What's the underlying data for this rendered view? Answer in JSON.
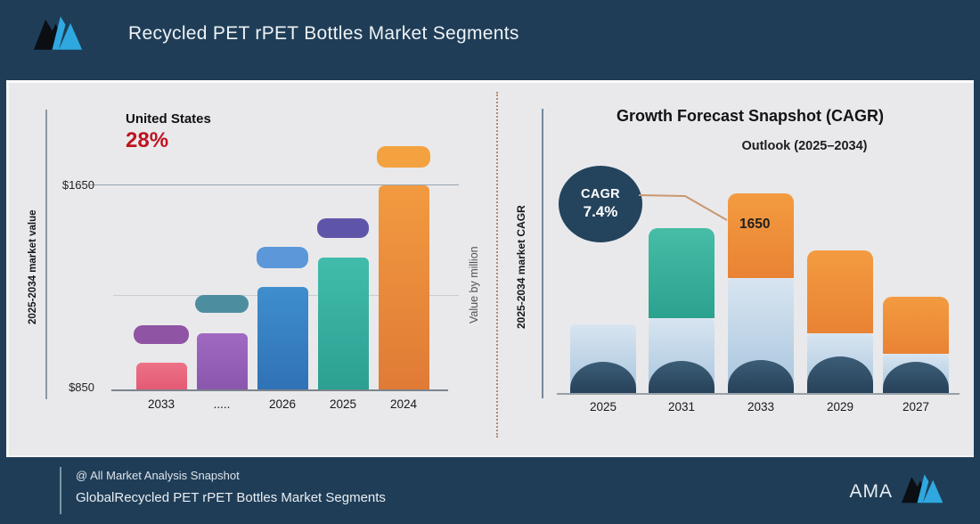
{
  "header": {
    "title": "Recycled PET rPET Bottles Market Segments"
  },
  "footer": {
    "line1": "@ All Market Analysis Snapshot",
    "line2": "GlobalRecycled PET rPET Bottles Market Segments",
    "brand": "AMA"
  },
  "colors": {
    "frame": "#1f3d57",
    "canvas": "#e9e9eb",
    "divider_dotted": "#b08a76",
    "axis": "#8d98a3",
    "highlight_red": "#bf1220",
    "badge_navy": "#24435c",
    "connector_tan": "#c9976f"
  },
  "chart_data": [
    {
      "type": "bar",
      "title": "United States",
      "highlight": "28%",
      "ylabel_left": "2025-2034 market value",
      "ylabel_right": "Value by million",
      "ylim": [
        850,
        1650
      ],
      "yticks": [
        {
          "label": "$1650",
          "value": 1650
        },
        {
          "label": "$850",
          "value": 850
        }
      ],
      "grid": true,
      "categories": [
        "2033",
        ".....",
        "2026",
        "2025",
        "2024"
      ],
      "values": [
        955,
        1070,
        1252,
        1368,
        1650
      ],
      "bar_gradients": [
        [
          "#ed7287",
          "#e35a74"
        ],
        [
          "#a169c1",
          "#8a57ad"
        ],
        [
          "#3f8ecd",
          "#2f72b5"
        ],
        [
          "#41bcab",
          "#2ba092"
        ],
        [
          "#f29a40",
          "#e07b36"
        ]
      ],
      "caps": [
        {
          "color": "#9054a4",
          "height": 21,
          "gap": 21,
          "width": 62
        },
        {
          "color": "#4d8da0",
          "height": 20,
          "gap": 23,
          "width": 60
        },
        {
          "color": "#5b97d9",
          "height": 24,
          "gap": 21,
          "width": 58
        },
        {
          "color": "#5f55a8",
          "height": 22,
          "gap": 22,
          "width": 58
        },
        {
          "color": "#f3a23f",
          "height": 24,
          "gap": 20,
          "width": 60
        }
      ]
    },
    {
      "type": "stacked-bar",
      "title": "Growth Forecast Snapshot (CAGR)",
      "subtitle": "Outlook (2025–2034)",
      "ylabel": "2025-2034 market CAGR",
      "badge": {
        "label": "CAGR",
        "value": "7.4%"
      },
      "palette": {
        "navy": [
          "#3c5d76",
          "#27425a"
        ],
        "lightblue": [
          "#d8e5f1",
          "#a8c5de"
        ],
        "teal": [
          "#47bda7",
          "#2ba18f"
        ],
        "orange": [
          "#f39b40",
          "#e98334"
        ]
      },
      "categories": [
        "2025",
        "2031",
        "2033",
        "2029",
        "2027"
      ],
      "bars": [
        {
          "label": "2025",
          "segments": [
            {
              "color": "navy",
              "h": 35
            },
            {
              "color": "lightblue",
              "h": 42
            }
          ]
        },
        {
          "label": "2031",
          "segments": [
            {
              "color": "navy",
              "h": 36
            },
            {
              "color": "lightblue",
              "h": 48
            },
            {
              "color": "teal",
              "h": 101
            }
          ]
        },
        {
          "label": "2033",
          "annotation": "1650",
          "segments": [
            {
              "color": "navy",
              "h": 37
            },
            {
              "color": "lightblue",
              "h": 92
            },
            {
              "color": "orange",
              "h": 95
            }
          ]
        },
        {
          "label": "2029",
          "segments": [
            {
              "color": "navy",
              "h": 41
            },
            {
              "color": "lightblue",
              "h": 26
            },
            {
              "color": "orange",
              "h": 93
            }
          ]
        },
        {
          "label": "2027",
          "segments": [
            {
              "color": "navy",
              "h": 35
            },
            {
              "color": "lightblue",
              "h": 9
            },
            {
              "color": "orange",
              "h": 64
            }
          ]
        }
      ]
    }
  ]
}
